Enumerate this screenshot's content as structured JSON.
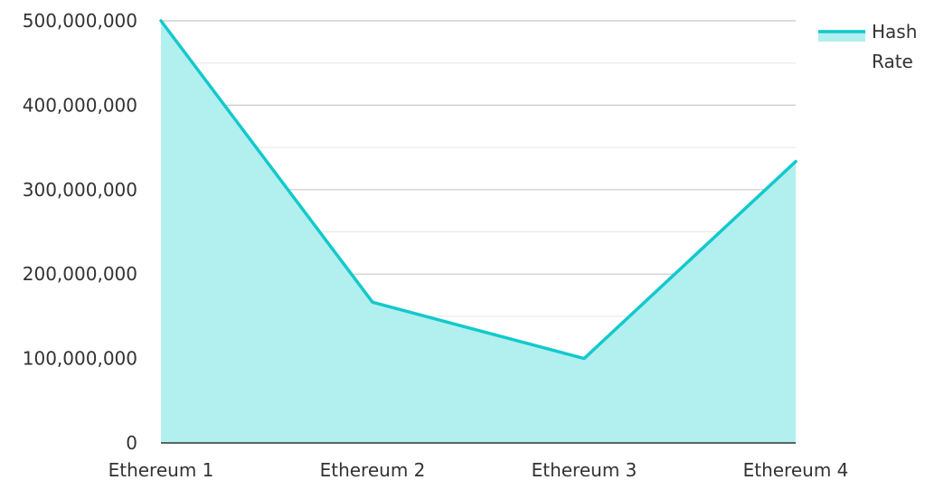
{
  "chart_data": {
    "type": "area",
    "categories": [
      "Ethereum 1",
      "Ethereum 2",
      "Ethereum 3",
      "Ethereum 4"
    ],
    "series": [
      {
        "name": "Hash Rate",
        "values": [
          500000000,
          166666667,
          100000000,
          333333333
        ]
      }
    ],
    "ylim": [
      0,
      500000000
    ],
    "yticks": [
      0,
      100000000,
      200000000,
      300000000,
      400000000,
      500000000
    ],
    "ytick_labels": [
      "0",
      "100,000,000",
      "200,000,000",
      "300,000,000",
      "400,000,000",
      "500,000,000"
    ],
    "grid": true,
    "legend_position": "top-right",
    "colors": {
      "line": "#12c9cc",
      "fill": "#b2efef",
      "grid_major": "#c8c8c8",
      "grid_minor": "#e6e6e6",
      "axis": "#333333"
    }
  }
}
